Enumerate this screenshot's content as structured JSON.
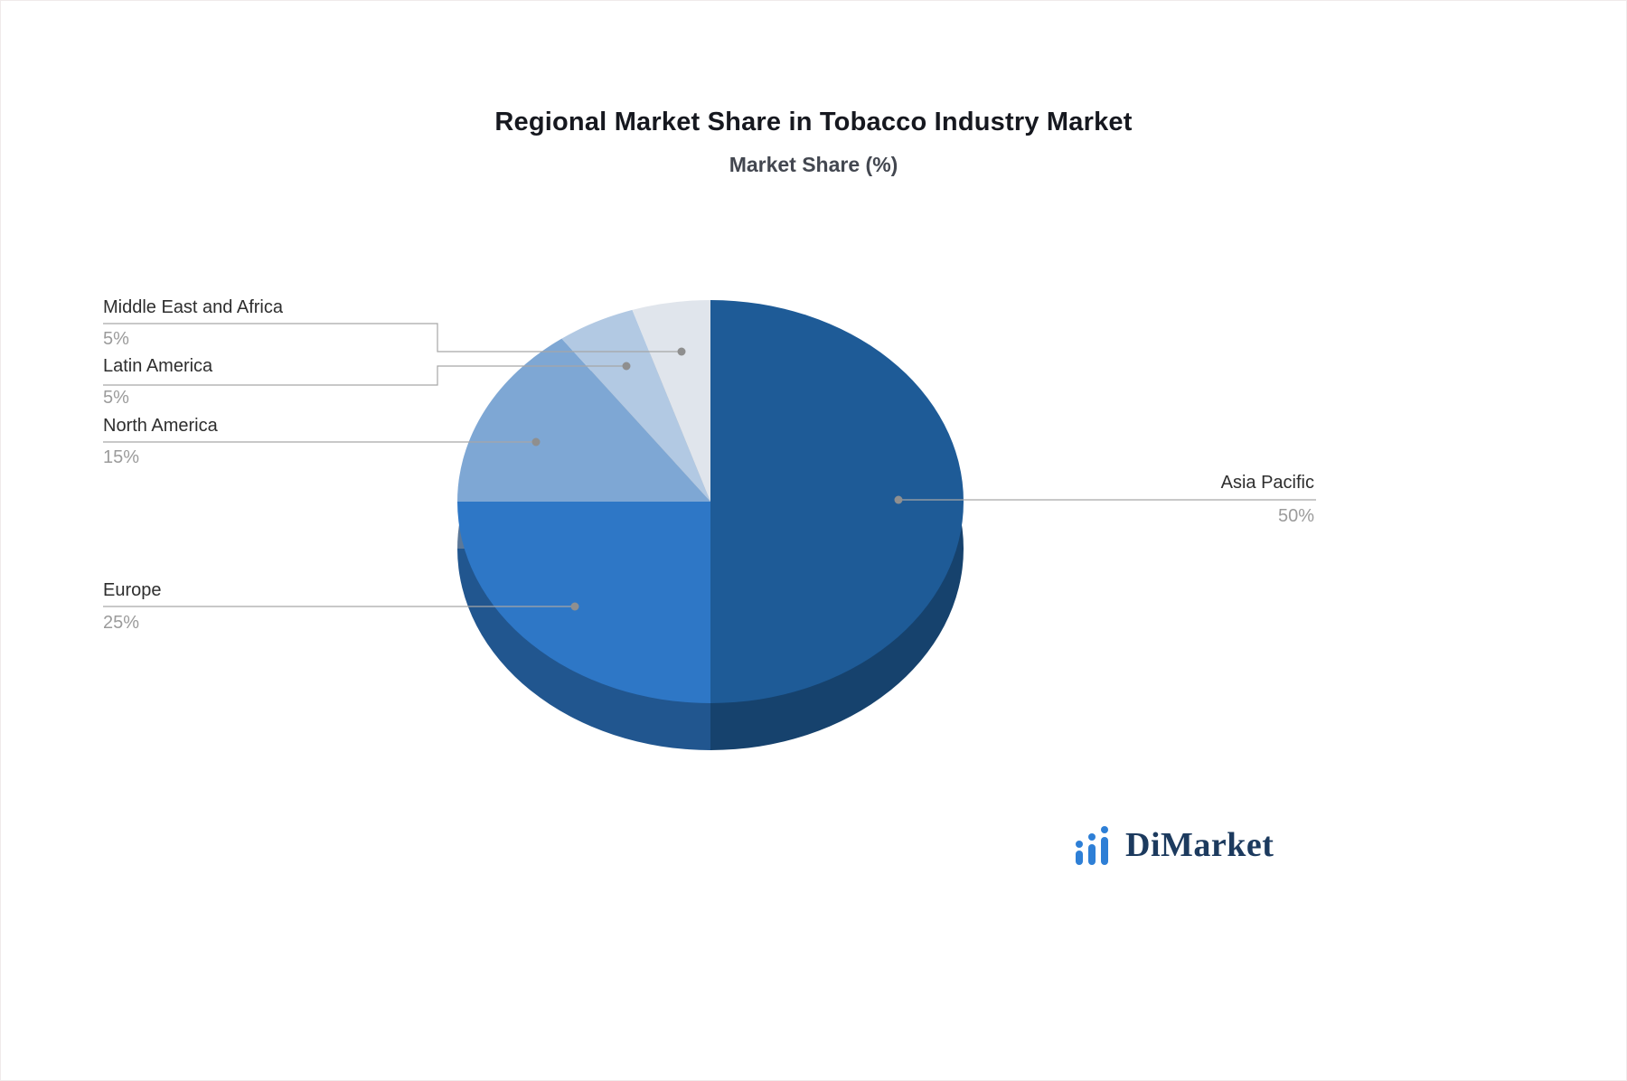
{
  "page": {
    "title": "Regional Market Share in Tobacco Industry Market",
    "subtitle": "Market Share (%)"
  },
  "brand": {
    "name": "DiMarket",
    "icon": "bar-chart-icon",
    "text_color": "#1c3a5e",
    "icon_color": "#2e7fd6"
  },
  "chart_data": {
    "type": "pie",
    "title": "Regional Market Share in Tobacco Industry Market",
    "subtitle": "Market Share (%)",
    "unit": "%",
    "style": "3d",
    "start_angle_deg": 0,
    "direction": "clockwise",
    "legend_position": "outside-callouts",
    "slices": [
      {
        "label": "Asia Pacific",
        "value": 50,
        "display": "50%",
        "color": "#1e5b97"
      },
      {
        "label": "Europe",
        "value": 25,
        "display": "25%",
        "color": "#2e77c6"
      },
      {
        "label": "North America",
        "value": 15,
        "display": "15%",
        "color": "#7ea7d4"
      },
      {
        "label": "Latin America",
        "value": 5,
        "display": "5%",
        "color": "#b2c9e3"
      },
      {
        "label": "Middle East and Africa",
        "value": 5,
        "display": "5%",
        "color": "#e0e5ec"
      }
    ]
  }
}
